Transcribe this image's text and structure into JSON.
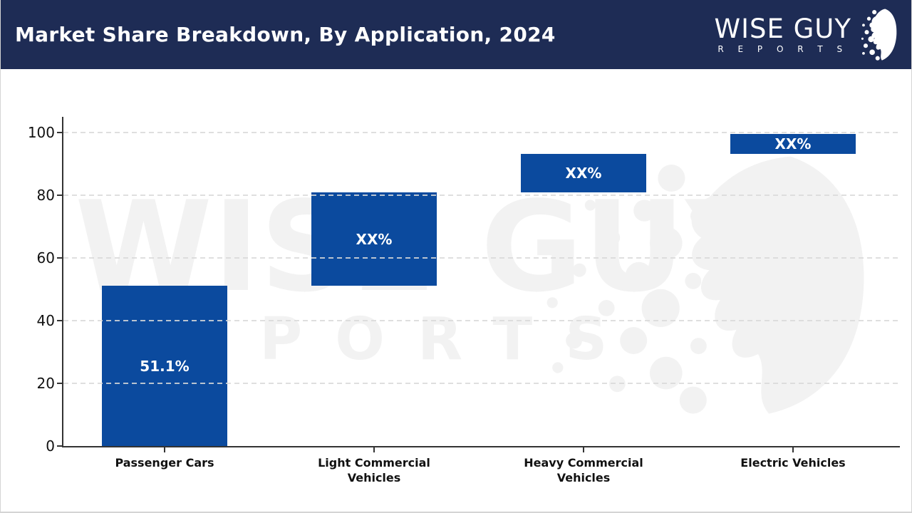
{
  "header": {
    "title": "Market Share Breakdown, By Application, 2024",
    "brand_line1": "WISE GUY",
    "brand_line2": "R E P O R T S",
    "bg_color": "#1e2c55"
  },
  "watermark": {
    "line1": "WISE GUY",
    "line2": "REPORTS"
  },
  "chart_data": {
    "type": "bar",
    "subtype": "waterfall",
    "title": "Market Share Breakdown, By Application, 2024",
    "categories": [
      "Passenger Cars",
      "Light Commercial Vehicles",
      "Heavy Commercial Vehicles",
      "Electric Vehicles"
    ],
    "segments": [
      {
        "category": "Passenger Cars",
        "label": "51.1%",
        "start": 0,
        "end": 51.1
      },
      {
        "category": "Light Commercial Vehicles",
        "label": "XX%",
        "start": 51.1,
        "end": 80.8
      },
      {
        "category": "Heavy Commercial Vehicles",
        "label": "XX%",
        "start": 80.8,
        "end": 93.2
      },
      {
        "category": "Electric Vehicles",
        "label": "XX%",
        "start": 93.2,
        "end": 99.6
      }
    ],
    "yticks": [
      0,
      20,
      40,
      60,
      80,
      100
    ],
    "ylim": [
      0,
      105
    ],
    "bar_color": "#0b4a9e",
    "label_color": "#ffffff",
    "grid": true,
    "gridline_style": "dashed",
    "legend": "none"
  }
}
